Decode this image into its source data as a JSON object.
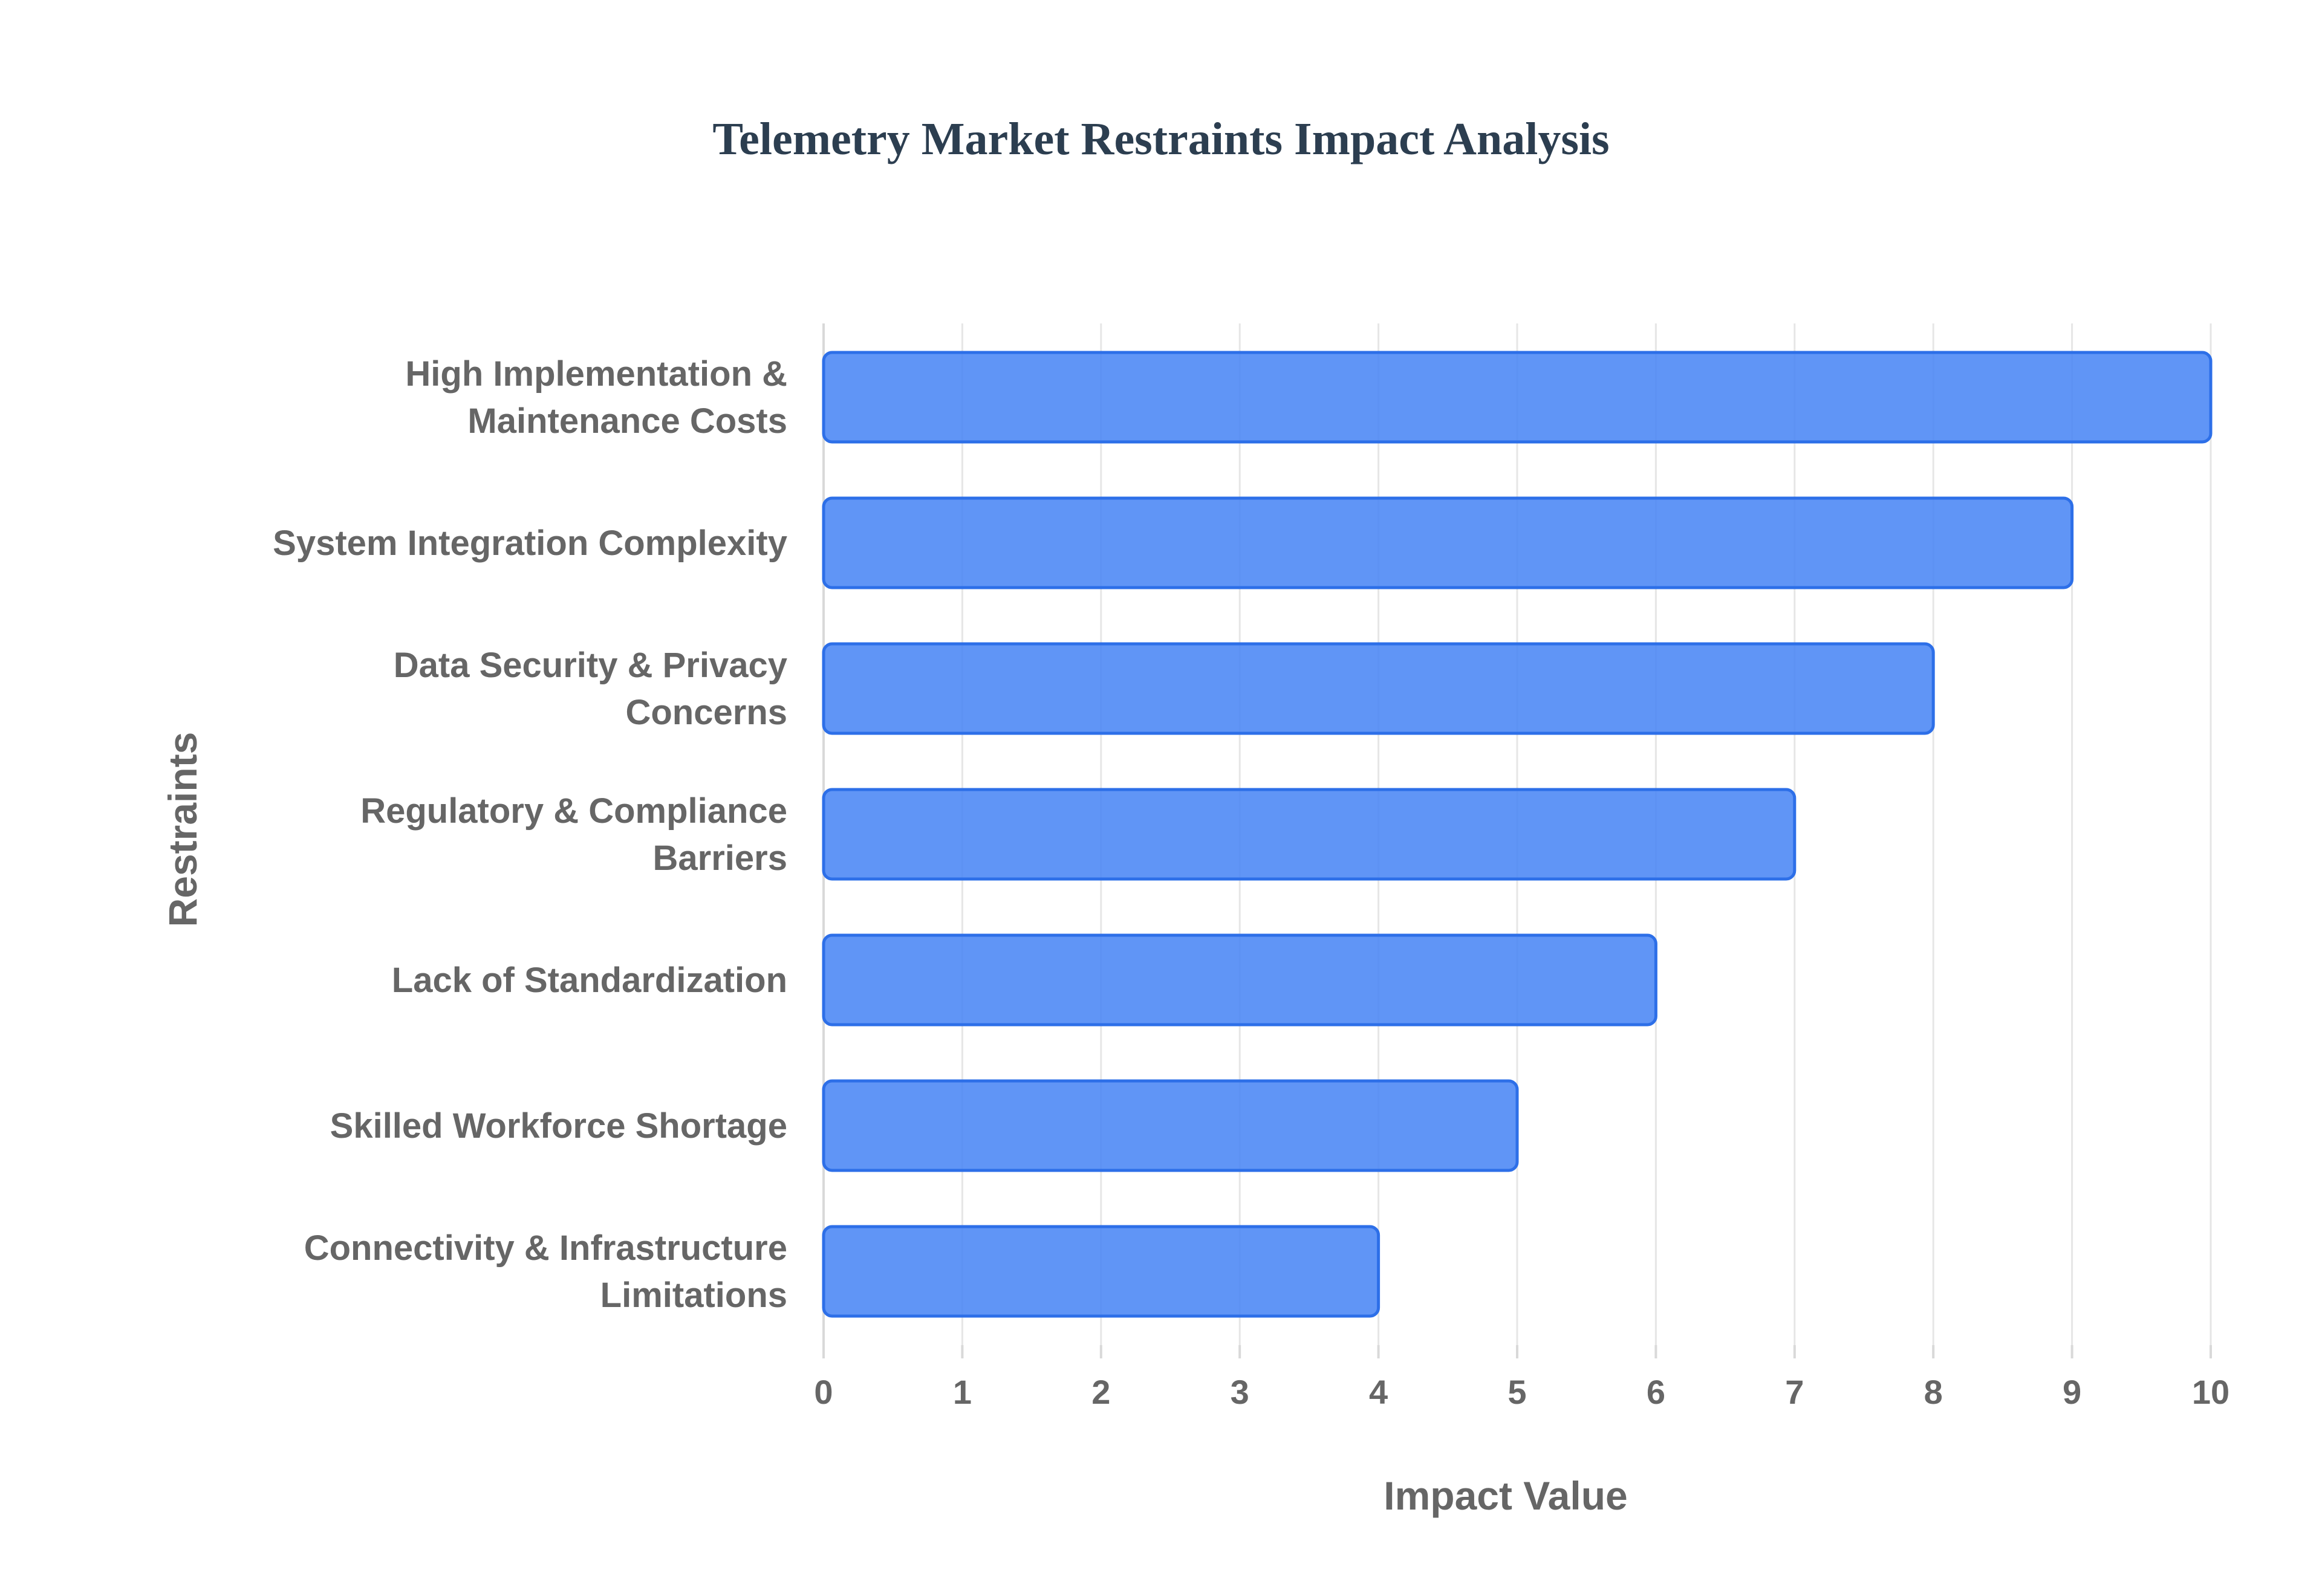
{
  "chart_data": {
    "type": "bar",
    "orientation": "horizontal",
    "title": "Telemetry Market Restraints Impact Analysis",
    "xlabel": "Impact Value",
    "ylabel": "Restraints",
    "xlim": [
      0,
      10
    ],
    "x_ticks": [
      "0",
      "1",
      "2",
      "3",
      "4",
      "5",
      "6",
      "7",
      "8",
      "9",
      "10"
    ],
    "grid": true,
    "legend": "none",
    "categories": [
      [
        "High Implementation &",
        "Maintenance Costs"
      ],
      [
        "System Integration Complexity"
      ],
      [
        "Data Security & Privacy",
        "Concerns"
      ],
      [
        "Regulatory & Compliance",
        "Barriers"
      ],
      [
        "Lack of Standardization"
      ],
      [
        "Skilled Workforce Shortage"
      ],
      [
        "Connectivity & Infrastructure",
        "Limitations"
      ]
    ],
    "values": [
      10,
      9,
      8,
      7,
      6,
      5,
      4
    ],
    "colors": {
      "bar_fill": "#4a86f5",
      "bar_stroke": "#2d6fe8",
      "text": "#666666",
      "title": "#2c3e50"
    }
  }
}
